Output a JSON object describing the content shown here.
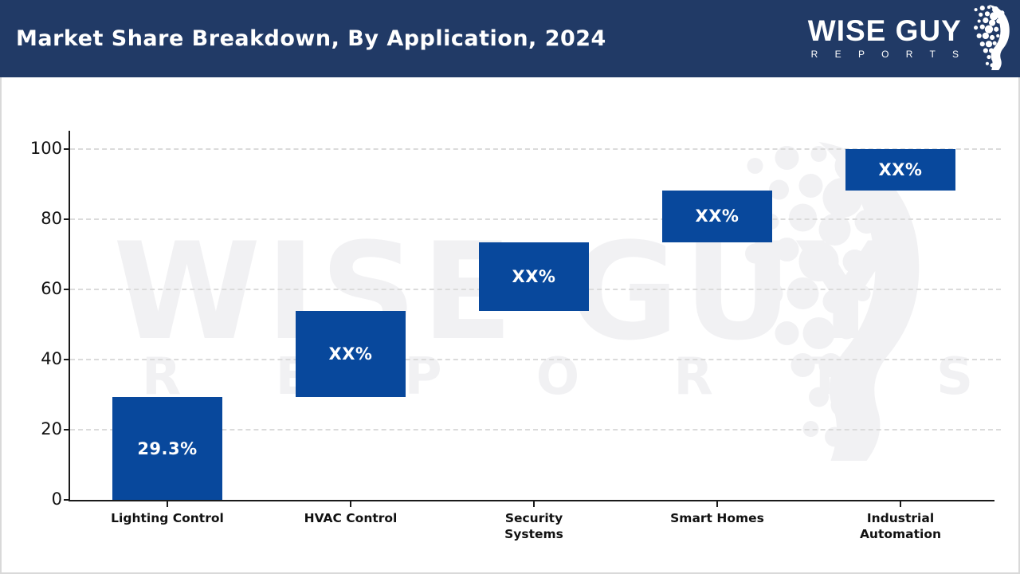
{
  "header": {
    "title": "Market Share Breakdown, By Application, 2024",
    "logo": {
      "name": "WISE GUY",
      "tagline": "R E P O R T S"
    }
  },
  "watermark": {
    "line1": "WISE GUY",
    "line2": "R E P O R T S"
  },
  "colors": {
    "header_bg": "#213a66",
    "bar": "#08489c",
    "bar_label": "#ffffff",
    "grid": "#dbdbdb",
    "axis": "#1a1a1a",
    "watermark": "#f1f1f3"
  },
  "chart_data": {
    "type": "bar",
    "subtype": "waterfall",
    "title": "Market Share Breakdown, By Application, 2024",
    "categories": [
      "Lighting Control",
      "HVAC Control",
      "Security Systems",
      "Smart Homes",
      "Industrial Automation"
    ],
    "series": [
      {
        "name": "Market Share (%)",
        "segments": [
          {
            "category": "Lighting Control",
            "start": 0,
            "end": 29.3,
            "label": "29.3%"
          },
          {
            "category": "HVAC Control",
            "start": 29.3,
            "end": 53.9,
            "label": "XX%"
          },
          {
            "category": "Security Systems",
            "start": 53.9,
            "end": 73.4,
            "label": "XX%"
          },
          {
            "category": "Smart Homes",
            "start": 73.4,
            "end": 88.2,
            "label": "XX%"
          },
          {
            "category": "Industrial Automation",
            "start": 88.2,
            "end": 100,
            "label": "XX%"
          }
        ]
      }
    ],
    "xlabel": "",
    "ylabel": "",
    "ylim": [
      0,
      100
    ],
    "yticks": [
      0,
      20,
      40,
      60,
      80,
      100
    ],
    "grid": "horizontal-dashed",
    "legend": "none",
    "bar_color": "#08489c",
    "bar_label_color": "#ffffff"
  }
}
